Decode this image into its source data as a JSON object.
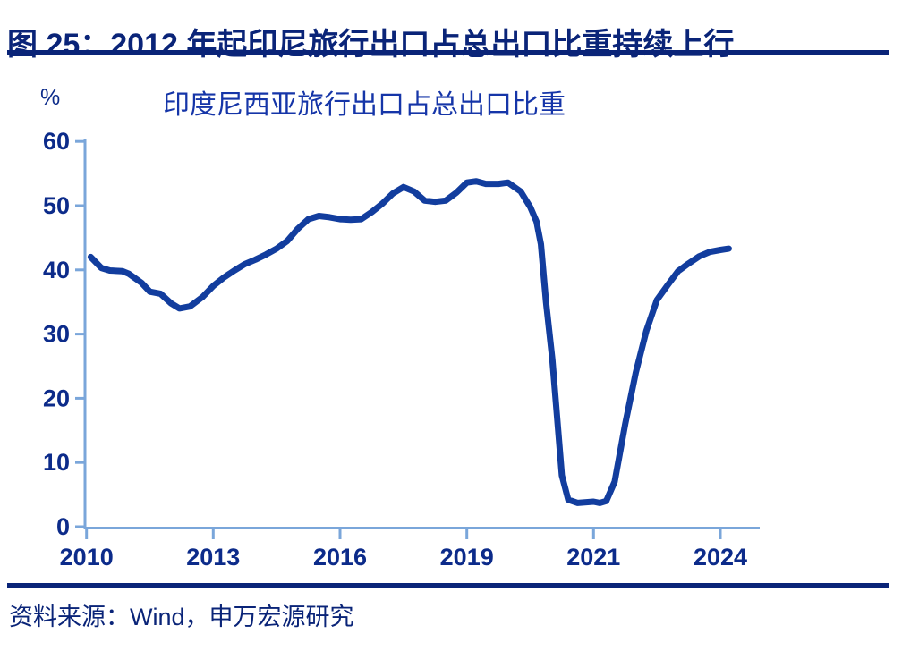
{
  "header": {
    "title": "图 25：2012 年起印尼旅行出口占总出口比重持续上行"
  },
  "chart": {
    "title": "印度尼西亚旅行出口占总出口比重",
    "unit": "%"
  },
  "footer": {
    "source": "资料来源：Wind，申万宏源研究"
  },
  "colors": {
    "navy_text": "#0A2478",
    "tick_text": "#0C2B8A",
    "chart_title": "#1535A8",
    "series_line": "#123D9E",
    "axis": "#7AA6DA",
    "background": "#FFFFFF"
  },
  "chart_data": {
    "type": "line",
    "title": "印度尼西亚旅行出口占总出口比重",
    "xlabel": "",
    "ylabel": "%",
    "ylim": [
      0,
      60
    ],
    "y_ticks": [
      0,
      10,
      20,
      30,
      40,
      50,
      60
    ],
    "x_tick_labels": [
      "2010",
      "2013",
      "2016",
      "2019",
      "2021",
      "2024"
    ],
    "x_tick_years": [
      2010,
      2013,
      2016,
      2019,
      2021,
      2024
    ],
    "grid": false,
    "legend_position": "none",
    "series": [
      {
        "name": "印度尼西亚旅行出口占总出口比重",
        "points": [
          [
            2010.1,
            42.0
          ],
          [
            2010.35,
            40.3
          ],
          [
            2010.55,
            39.9
          ],
          [
            2010.85,
            39.8
          ],
          [
            2011.0,
            39.4
          ],
          [
            2011.3,
            38.0
          ],
          [
            2011.5,
            36.6
          ],
          [
            2011.75,
            36.3
          ],
          [
            2012.0,
            34.8
          ],
          [
            2012.2,
            34.0
          ],
          [
            2012.45,
            34.3
          ],
          [
            2012.75,
            35.8
          ],
          [
            2013.0,
            37.5
          ],
          [
            2013.25,
            38.8
          ],
          [
            2013.5,
            39.9
          ],
          [
            2013.75,
            40.9
          ],
          [
            2014.0,
            41.6
          ],
          [
            2014.25,
            42.4
          ],
          [
            2014.5,
            43.3
          ],
          [
            2014.75,
            44.5
          ],
          [
            2015.0,
            46.4
          ],
          [
            2015.25,
            47.9
          ],
          [
            2015.5,
            48.4
          ],
          [
            2015.75,
            48.2
          ],
          [
            2016.0,
            47.9
          ],
          [
            2016.25,
            47.8
          ],
          [
            2016.5,
            47.9
          ],
          [
            2016.75,
            49.0
          ],
          [
            2017.0,
            50.3
          ],
          [
            2017.25,
            51.9
          ],
          [
            2017.5,
            52.9
          ],
          [
            2017.75,
            52.2
          ],
          [
            2018.0,
            50.8
          ],
          [
            2018.25,
            50.6
          ],
          [
            2018.5,
            50.8
          ],
          [
            2018.75,
            52.0
          ],
          [
            2019.0,
            53.6
          ],
          [
            2019.15,
            53.8
          ],
          [
            2019.3,
            53.4
          ],
          [
            2019.5,
            53.4
          ],
          [
            2019.65,
            53.6
          ],
          [
            2019.85,
            52.2
          ],
          [
            2020.0,
            49.8
          ],
          [
            2020.1,
            47.5
          ],
          [
            2020.17,
            44.0
          ],
          [
            2020.25,
            35.0
          ],
          [
            2020.35,
            26.0
          ],
          [
            2020.5,
            8.0
          ],
          [
            2020.6,
            4.2
          ],
          [
            2020.75,
            3.7
          ],
          [
            2021.0,
            3.9
          ],
          [
            2021.15,
            3.7
          ],
          [
            2021.3,
            4.0
          ],
          [
            2021.5,
            7.0
          ],
          [
            2021.75,
            16.0
          ],
          [
            2022.0,
            24.0
          ],
          [
            2022.25,
            30.5
          ],
          [
            2022.5,
            35.3
          ],
          [
            2022.75,
            37.6
          ],
          [
            2023.0,
            39.8
          ],
          [
            2023.25,
            41.0
          ],
          [
            2023.5,
            42.1
          ],
          [
            2023.75,
            42.8
          ],
          [
            2024.0,
            43.1
          ],
          [
            2024.2,
            43.3
          ]
        ]
      }
    ]
  }
}
